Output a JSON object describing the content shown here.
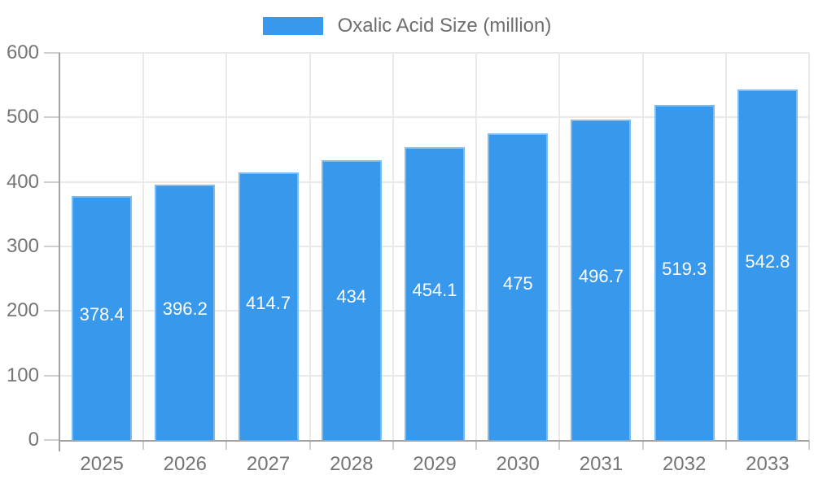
{
  "chart_data": {
    "type": "bar",
    "legend": "Oxalic Acid Size (million)",
    "legend_position": "top",
    "categories": [
      "2025",
      "2026",
      "2027",
      "2028",
      "2029",
      "2030",
      "2031",
      "2032",
      "2033"
    ],
    "values": [
      378.4,
      396.2,
      414.7,
      434,
      454.1,
      475,
      496.7,
      519.3,
      542.8
    ],
    "ylim": [
      0,
      600
    ],
    "yticks": [
      0,
      100,
      200,
      300,
      400,
      500,
      600
    ],
    "grid": true,
    "colors": {
      "bar": "#3898ec",
      "bar_edge": "rgba(255,255,255,0.35)",
      "value_label": "#ffffff",
      "grid_line": "#e9e9e9",
      "tick_line": "#cfcfcf",
      "axis_line": "#a3a3a3",
      "tick_text": "#757575",
      "legend_text": "#6e6e6e"
    }
  }
}
